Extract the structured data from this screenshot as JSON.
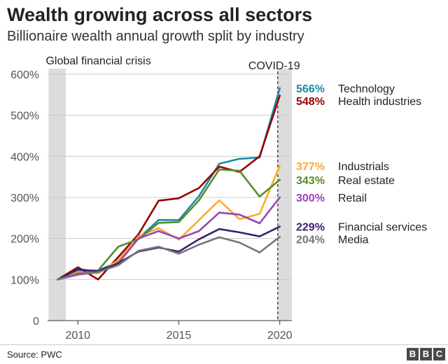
{
  "header": {
    "title": "Wealth growing across all sectors",
    "subtitle": "Billionaire wealth annual growth split by industry"
  },
  "footer": {
    "source": "Source: PWC",
    "logo_letters": [
      "B",
      "B",
      "C"
    ]
  },
  "chart_data": {
    "type": "line",
    "title": "Wealth growing across all sectors",
    "subtitle": "Billionaire wealth annual growth split by industry",
    "xlabel": "",
    "ylabel": "",
    "xlim": [
      2008.5,
      2020.6
    ],
    "ylim": [
      0,
      600
    ],
    "x_ticks": [
      2010,
      2015,
      2020
    ],
    "x_tick_labels": [
      "2010",
      "2015",
      "2020"
    ],
    "y_ticks": [
      0,
      100,
      200,
      300,
      400,
      500,
      600
    ],
    "y_tick_labels": [
      "0",
      "100%",
      "200%",
      "300%",
      "400%",
      "500%",
      "600%"
    ],
    "grid": true,
    "legend": "direct labels at right end of lines",
    "shaded_periods": [
      {
        "label": "Global financial crisis",
        "start": 2008.55,
        "end": 2009.4
      },
      {
        "label": "COVID-19",
        "start": 2019.9,
        "end": 2020.6
      }
    ],
    "marker_line": {
      "x": 2019.9,
      "style": "dashed"
    },
    "x": [
      2009,
      2010,
      2011,
      2012,
      2013,
      2014,
      2015,
      2016,
      2017,
      2018,
      2019,
      2020
    ],
    "series": [
      {
        "name": "Technology",
        "label_value": "566%",
        "color": "#1a8bab",
        "values": [
          100,
          122,
          122,
          143,
          200,
          245,
          245,
          303,
          382,
          394,
          397,
          566
        ]
      },
      {
        "name": "Health industries",
        "label_value": "548%",
        "color": "#990000",
        "values": [
          100,
          130,
          100,
          155,
          210,
          292,
          298,
          323,
          375,
          362,
          400,
          548
        ]
      },
      {
        "name": "Industrials",
        "label_value": "377%",
        "color": "#fdab2a",
        "values": [
          100,
          118,
          115,
          147,
          205,
          225,
          197,
          245,
          293,
          247,
          260,
          377
        ]
      },
      {
        "name": "Real estate",
        "label_value": "343%",
        "color": "#588c2b",
        "values": [
          100,
          113,
          122,
          180,
          198,
          238,
          240,
          293,
          368,
          365,
          302,
          343
        ]
      },
      {
        "name": "Retail",
        "label_value": "300%",
        "color": "#9c44b5",
        "values": [
          100,
          112,
          118,
          140,
          200,
          218,
          200,
          218,
          263,
          258,
          237,
          300
        ]
      },
      {
        "name": "Financial services",
        "label_value": "229%",
        "color": "#3d1f6e",
        "values": [
          100,
          125,
          120,
          140,
          168,
          178,
          168,
          198,
          223,
          215,
          205,
          229
        ]
      },
      {
        "name": "Media",
        "label_value": "204%",
        "color": "#767676",
        "values": [
          100,
          115,
          118,
          135,
          170,
          180,
          163,
          185,
          203,
          190,
          166,
          204
        ]
      }
    ]
  }
}
